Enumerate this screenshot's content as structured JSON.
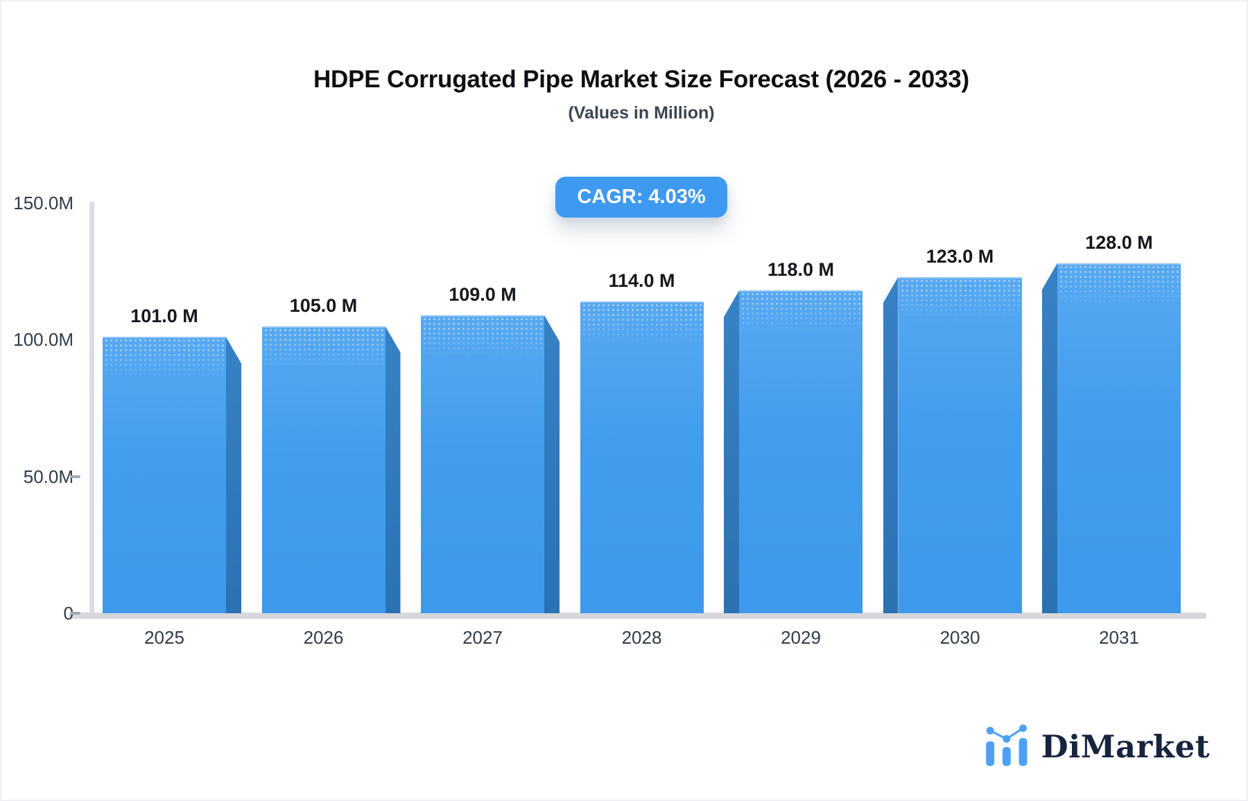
{
  "header": {
    "title": "HDPE Corrugated Pipe Market Size Forecast (2026 - 2033)",
    "subtitle": "(Values in Million)",
    "cagr_label": "CAGR: 4.03%"
  },
  "chart_data": {
    "type": "bar",
    "title": "HDPE Corrugated Pipe Market Size Forecast (2026 - 2033)",
    "subtitle": "(Values in Million)",
    "categories": [
      "2025",
      "2026",
      "2027",
      "2028",
      "2029",
      "2030",
      "2031"
    ],
    "values": [
      101,
      105,
      109,
      114,
      118,
      123,
      128
    ],
    "value_labels": [
      "101.0 M",
      "105.0 M",
      "109.0 M",
      "114.0 M",
      "118.0 M",
      "123.0 M",
      "128.0 M"
    ],
    "unit": "Million",
    "ylim": [
      0,
      150
    ],
    "y_ticks": [
      {
        "label": "150.0M",
        "value": 150,
        "dash": false
      },
      {
        "label": "100.0M",
        "value": 100,
        "dash": false
      },
      {
        "label": "50.0M",
        "value": 50,
        "dash": true
      },
      {
        "label": "0",
        "value": 0,
        "dash": true
      }
    ],
    "grid": false,
    "legend": "none",
    "annotation": "CAGR: 4.03%"
  },
  "colors": {
    "badge_bg": "#3e9af0",
    "bar_face_top": "#58a9f1",
    "bar_face": "#429ded",
    "bar_face_bottom": "#3d99ec",
    "bar_side_top": "#3781c6",
    "bar_side_bottom": "#2a72b4",
    "axis_line": "#dadce2",
    "baseline": "#d6d8dc",
    "tick_dash": "#a2aab3",
    "logo_navy": "#16243e",
    "logo_blue": "#4ba1f6"
  },
  "branding": {
    "name": "DiMarket",
    "icon": "bar-chart-trend-icon"
  }
}
